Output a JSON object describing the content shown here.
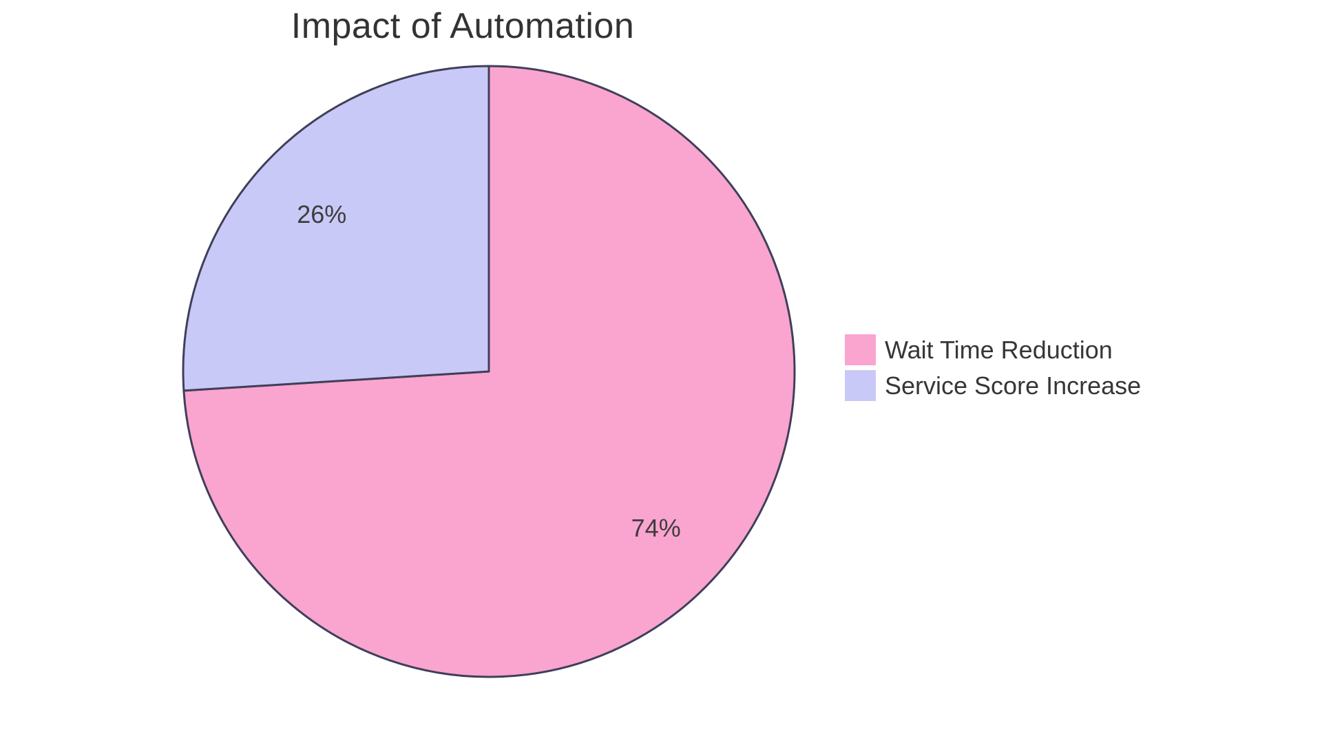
{
  "page": {
    "background_color": "#ffffff"
  },
  "chart_data": {
    "type": "pie",
    "title": "Impact of Automation",
    "legend_position": "right",
    "direction": "clockwise",
    "start_angle_deg": 0,
    "stroke_color": "#3f3f5a",
    "stroke_width": 3,
    "label_color": "#3d3d3d",
    "title_color": "#333333",
    "slices": [
      {
        "label": "Wait Time Reduction",
        "value": 74,
        "display": "74%",
        "color": "#faa4d0"
      },
      {
        "label": "Service Score Increase",
        "value": 26,
        "display": "26%",
        "color": "#c9c9f7"
      }
    ]
  }
}
